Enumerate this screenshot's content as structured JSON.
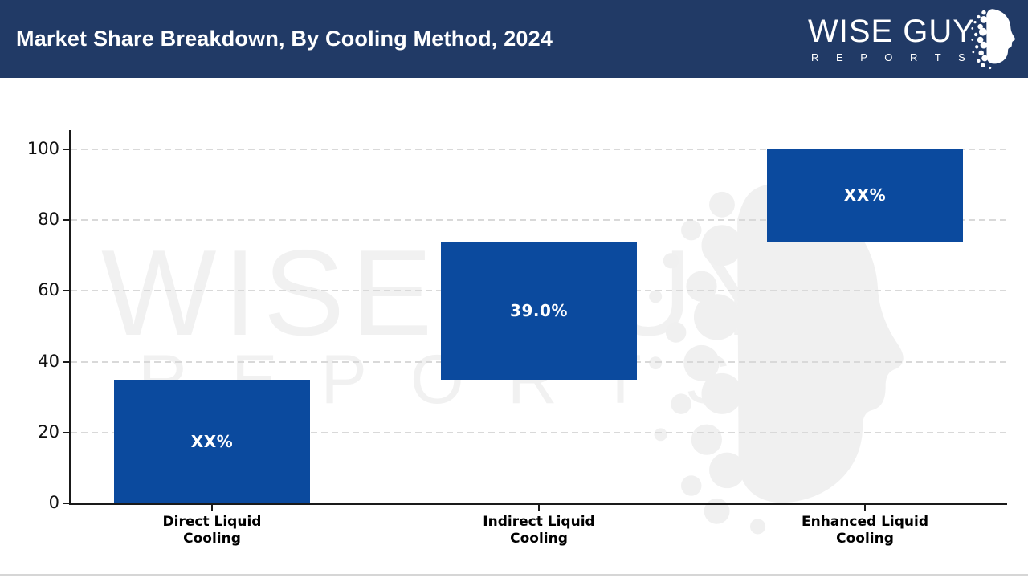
{
  "header": {
    "title": "Market Share Breakdown, By Cooling Method, 2024",
    "logo": {
      "name_line": "WISE GUY",
      "reports_line": "R E P O R T S"
    }
  },
  "watermark": {
    "name_line": "WISE GUY",
    "reports_line": "REPORTS"
  },
  "colors": {
    "header_bg": "#213a66",
    "bar": "#0b4a9e",
    "grid": "#d9d9d9",
    "axis": "#1a1a1a",
    "bar_label": "#ffffff",
    "watermark": "#f1f1f1"
  },
  "chart_data": {
    "type": "bar",
    "subtype": "floating-column-waterfall",
    "title": "Market Share Breakdown, By Cooling Method, 2024",
    "categories": [
      "Direct Liquid Cooling",
      "Indirect Liquid Cooling",
      "Enhanced Liquid Cooling"
    ],
    "category_label_lines": [
      [
        "Direct Liquid",
        "Cooling"
      ],
      [
        "Indirect Liquid",
        "Cooling"
      ],
      [
        "Enhanced Liquid",
        "Cooling"
      ]
    ],
    "series": [
      {
        "name": "Market Share (%)",
        "segments": [
          {
            "category": "Direct Liquid Cooling",
            "start": 0,
            "end": 35,
            "label": "XX%"
          },
          {
            "category": "Indirect Liquid Cooling",
            "start": 35,
            "end": 74,
            "label": "39.0%"
          },
          {
            "category": "Enhanced Liquid Cooling",
            "start": 74,
            "end": 100,
            "label": "XX%"
          }
        ]
      }
    ],
    "ylim": [
      0,
      100
    ],
    "yticks": [
      0,
      20,
      40,
      60,
      80,
      100
    ],
    "xlabel": "",
    "ylabel": "",
    "grid": "horizontal-dashed",
    "legend": "none"
  }
}
